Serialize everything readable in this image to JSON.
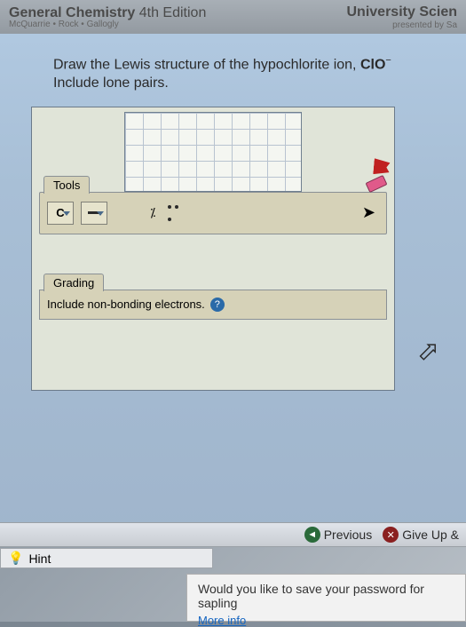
{
  "header": {
    "title_bold": "General Chemistry",
    "title_rest": " 4th Edition",
    "authors": "McQuarrie • Rock • Gallogly",
    "uni": "University Scien",
    "presented": "presented by Sa"
  },
  "question": {
    "line1_pre": "Draw the Lewis structure of the hypochlorite ion, ",
    "formula": "ClO",
    "charge": "−",
    "line2": "Include lone pairs."
  },
  "tools": {
    "tab_label": "Tools",
    "element_btn": "C",
    "slash": "⁒"
  },
  "grading": {
    "tab_label": "Grading",
    "text": "Include non-bonding electrons.",
    "help": "?"
  },
  "nav": {
    "previous": "Previous",
    "giveup": "Give Up &"
  },
  "hint": {
    "label": "Hint"
  },
  "password_prompt": {
    "text": "Would you like to save your password for sapling",
    "more": "More info"
  }
}
